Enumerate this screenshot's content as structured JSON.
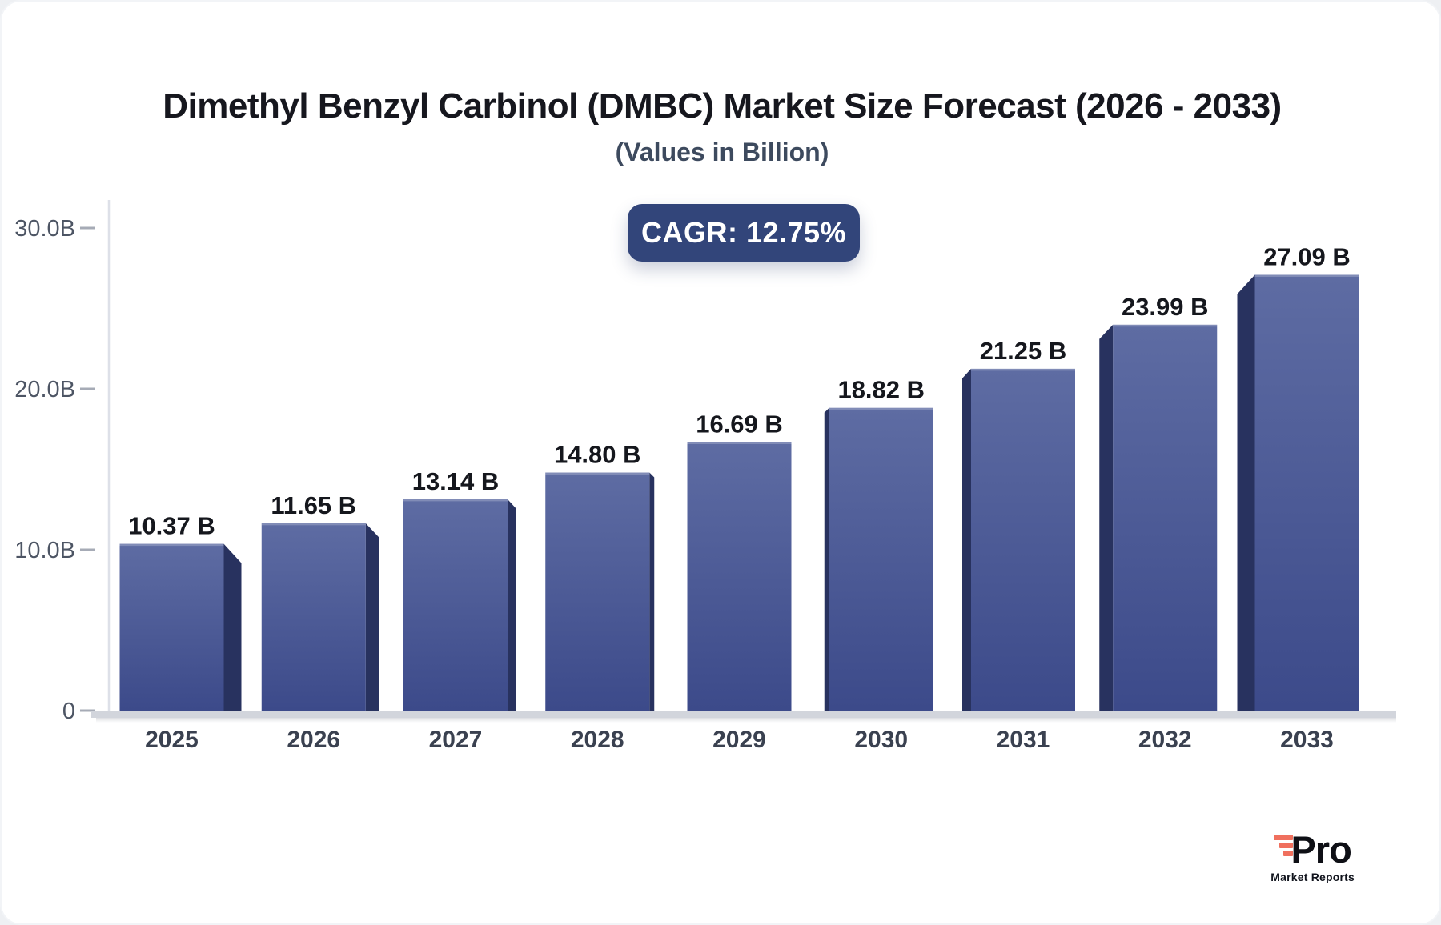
{
  "page": {
    "background": "#eef0f3",
    "card_background": "#ffffff"
  },
  "header": {
    "title": "Dimethyl Benzyl Carbinol (DMBC) Market Size Forecast (2026 - 2033)",
    "subtitle": "(Values in Billion)"
  },
  "badge": {
    "label": "CAGR: 12.75%",
    "background": "#32457a",
    "text_color": "#ffffff"
  },
  "chart_data": {
    "type": "bar",
    "title": "Dimethyl Benzyl Carbinol (DMBC) Market Size Forecast (2026 - 2033)",
    "subtitle": "(Values in Billion)",
    "categories": [
      "2025",
      "2026",
      "2027",
      "2028",
      "2029",
      "2030",
      "2031",
      "2032",
      "2033"
    ],
    "values": [
      10.37,
      11.65,
      13.14,
      14.8,
      16.69,
      18.82,
      21.25,
      23.99,
      27.09
    ],
    "value_labels": [
      "10.37 B",
      "11.65 B",
      "13.14 B",
      "14.80 B",
      "16.69 B",
      "18.82 B",
      "21.25 B",
      "23.99 B",
      "27.09 B"
    ],
    "xlabel": "",
    "ylabel": "",
    "ylim": [
      0,
      30
    ],
    "yticks": [
      {
        "value": 0,
        "label": "0"
      },
      {
        "value": 10,
        "label": "10.0B"
      },
      {
        "value": 20,
        "label": "20.0B"
      },
      {
        "value": 30,
        "label": "30.0B"
      }
    ],
    "grid": false,
    "legend": false,
    "style": "3d-perspective-bars",
    "colors": {
      "bar_face_top": "#5e6ca3",
      "bar_face_bottom": "#3c4a8a",
      "bar_side": "#28325f",
      "axis_line": "#dde0e8",
      "baseline": "#d2d5dc",
      "tick_dash": "#a6abb6",
      "tick_text": "#4d5564",
      "year_text": "#3a4150",
      "value_text": "#15171d"
    }
  },
  "logo": {
    "name": "Pro",
    "subtext": "Market Reports",
    "accent": "#f0705e"
  }
}
